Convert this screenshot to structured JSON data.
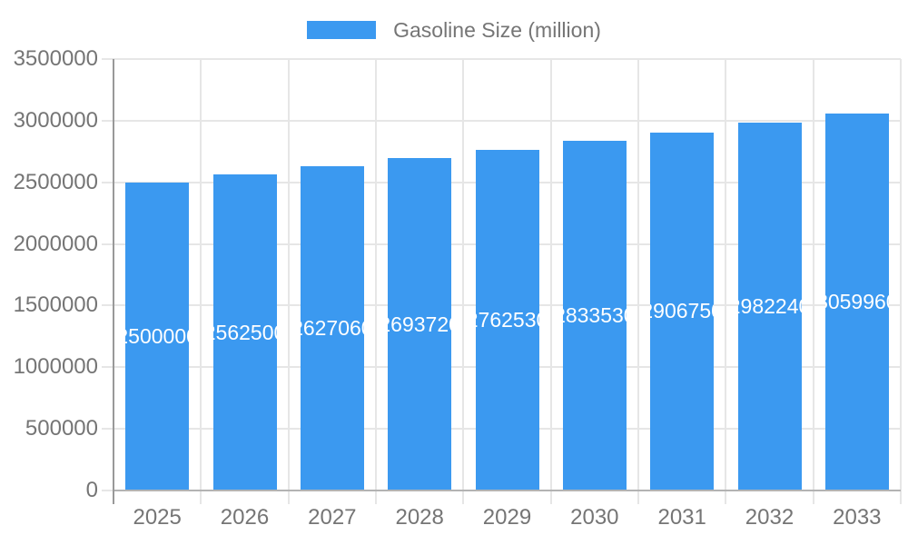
{
  "chart_data": {
    "type": "bar",
    "title": "",
    "legend": {
      "label": "Gasoline Size (million)",
      "position": "top-center"
    },
    "categories": [
      "2025",
      "2026",
      "2027",
      "2028",
      "2029",
      "2030",
      "2031",
      "2032",
      "2033"
    ],
    "series": [
      {
        "name": "Gasoline Size (million)",
        "values": [
          2500000,
          2562500,
          2627060,
          2693720,
          2762530,
          2833530,
          2906750,
          2982240,
          3059960
        ]
      }
    ],
    "bar_value_labels_shown": true,
    "bar_value_labels_note_position": "inside-bar-vertical-center, clipped to bar width",
    "xlabel": "",
    "ylabel": "",
    "ylim": [
      0,
      3500000
    ],
    "ytick_step": 500000,
    "ytick_labels": [
      "0",
      "500000",
      "1000000",
      "1500000",
      "2000000",
      "2500000",
      "3000000",
      "3500000"
    ],
    "grid": true,
    "colors": {
      "bar": "#3b99f0",
      "bar_label": "#ffffff",
      "axis_text": "#757575",
      "gridline": "#e6e6e6",
      "axis_line": "#999999",
      "baseline": "#b3b3b3",
      "background": "#ffffff"
    }
  }
}
